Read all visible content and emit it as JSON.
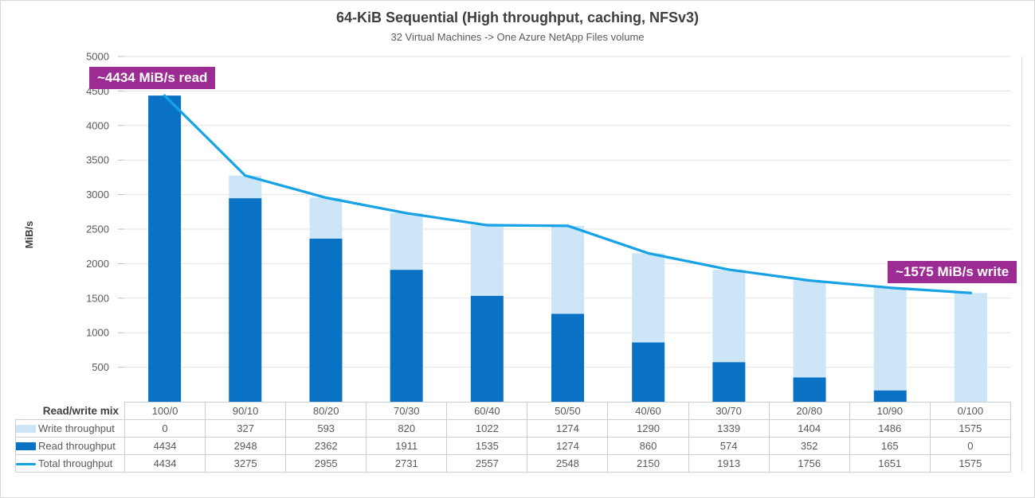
{
  "header": {
    "title": "64-KiB Sequential (High throughput, caching, NFSv3)",
    "subtitle": "32 Virtual Machines -> One Azure NetApp Files volume"
  },
  "annotations": {
    "read": {
      "label": "~4434 MiB/s read",
      "color": "#9c2b94"
    },
    "write": {
      "label": "~1575 MiB/s write",
      "color": "#9c2b94"
    }
  },
  "chart_data": {
    "type": "bar",
    "subtype": "stacked-bars-with-line-overlay",
    "title": "64-KiB Sequential (High throughput, caching, NFSv3)",
    "subtitle": "32 Virtual Machines -> One Azure NetApp Files volume",
    "xlabel": "Read/write mix",
    "ylabel": "MiB/s",
    "ylim": [
      0,
      5000
    ],
    "ytick_step": 500,
    "yticks": [
      500,
      1000,
      1500,
      2000,
      2500,
      3000,
      3500,
      4000,
      4500,
      5000
    ],
    "grid": true,
    "legend_position": "data-table-left",
    "categories": [
      "100/0",
      "90/10",
      "80/20",
      "70/30",
      "60/40",
      "50/50",
      "40/60",
      "30/70",
      "20/80",
      "10/90",
      "0/100"
    ],
    "series": [
      {
        "name": "Write throughput",
        "kind": "bar",
        "stack": "top",
        "color": "#cde6f7",
        "values": [
          0,
          327,
          593,
          820,
          1022,
          1274,
          1290,
          1339,
          1404,
          1486,
          1575
        ]
      },
      {
        "name": "Read throughput",
        "kind": "bar",
        "stack": "bottom",
        "color": "#0a72c4",
        "values": [
          4434,
          2948,
          2362,
          1911,
          1535,
          1274,
          860,
          574,
          352,
          165,
          0
        ]
      },
      {
        "name": "Total throughput",
        "kind": "line",
        "color": "#16a2e5",
        "values": [
          4434,
          3275,
          2955,
          2731,
          2557,
          2548,
          2150,
          1913,
          1756,
          1651,
          1575
        ]
      }
    ],
    "colors": {
      "gridline": "#e3e3e3",
      "tick": "#bfbfbf",
      "axis_text": "#595959",
      "table_border": "#c9cfd5",
      "annotation": "#9c2b94"
    }
  }
}
